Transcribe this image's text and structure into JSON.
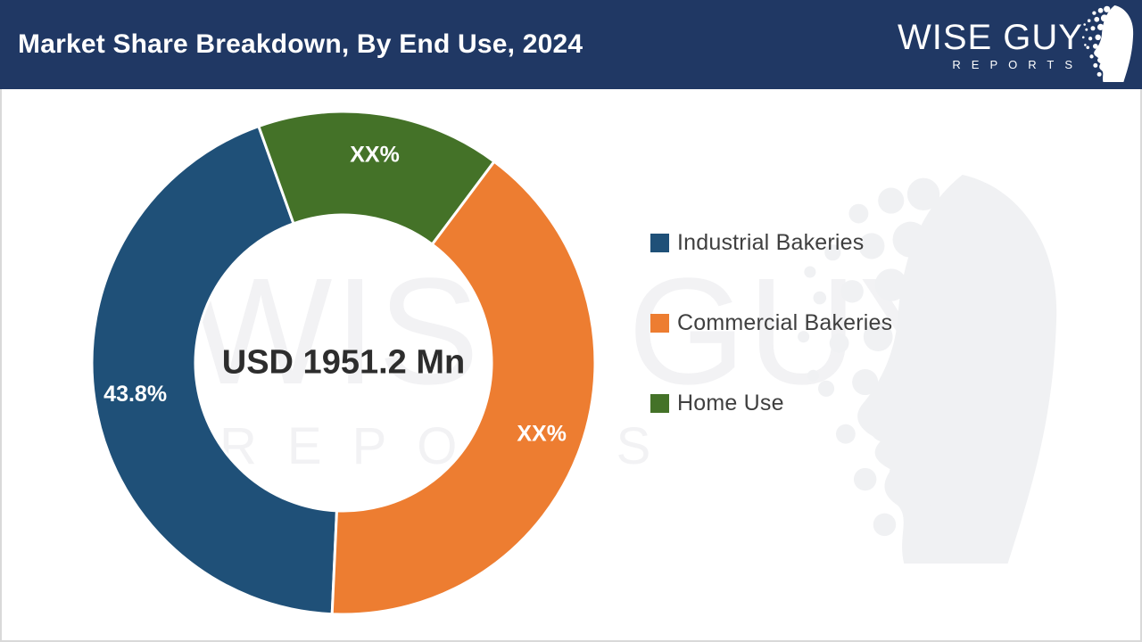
{
  "header": {
    "title": "Market Share Breakdown, By End Use, 2024",
    "logo": {
      "line1": "WISE GUY",
      "line2": "REPORTS"
    }
  },
  "watermark": {
    "line1": "WISE GUY",
    "line2": "REPORTS"
  },
  "chart_data": {
    "type": "donut",
    "title": "Market Share Breakdown, By End Use, 2024",
    "center_label": "USD 1951.2 Mn",
    "start_angle_deg": 182.6,
    "direction": "clockwise",
    "slices": [
      {
        "label": "Industrial Bakeries",
        "display": "43.8%",
        "value_pct": 43.8,
        "color": "#1F5078"
      },
      {
        "label": "Home Use",
        "display": "XX%",
        "value_pct": 15.7,
        "color": "#447228"
      },
      {
        "label": "Commercial Bakeries",
        "display": "XX%",
        "value_pct": 40.5,
        "color": "#ED7D31"
      }
    ],
    "legend_position": "right",
    "colors": {
      "header_bar": "#203864",
      "text_dark": "#2d2d2d",
      "legend_text": "#3f3f3f"
    }
  },
  "legend": {
    "items": [
      {
        "label": "Industrial Bakeries",
        "color": "#1F5078"
      },
      {
        "label": "Commercial Bakeries",
        "color": "#ED7D31"
      },
      {
        "label": "Home Use",
        "color": "#447228"
      }
    ]
  }
}
